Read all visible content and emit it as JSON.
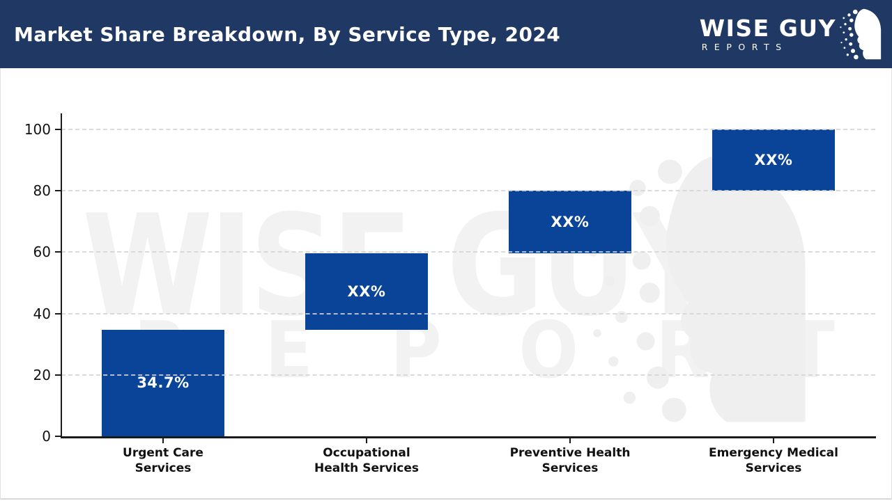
{
  "header": {
    "title": "Market Share Breakdown, By Service Type, 2024",
    "logo_line1": "WISE GUY",
    "logo_line2": "REPORTS"
  },
  "watermark": {
    "line1": "WISE GUY",
    "line2": "R E P O R T S"
  },
  "chart_data": {
    "type": "bar",
    "subtype": "waterfall",
    "title": "Market Share Breakdown, By Service Type, 2024",
    "categories": [
      "Urgent Care Services",
      "Occupational Health Services",
      "Preventive Health Services",
      "Emergency Medical Services"
    ],
    "bars": [
      {
        "category_line1": "Urgent Care",
        "category_line2": "Services",
        "start": 0,
        "end": 34.7,
        "label": "34.7%"
      },
      {
        "category_line1": "Occupational",
        "category_line2": "Health Services",
        "start": 34.7,
        "end": 59.7,
        "label": "XX%"
      },
      {
        "category_line1": "Preventive Health",
        "category_line2": "Services",
        "start": 59.7,
        "end": 80,
        "label": "XX%"
      },
      {
        "category_line1": "Emergency Medical",
        "category_line2": "Services",
        "start": 80,
        "end": 100,
        "label": "XX%"
      }
    ],
    "ylim": [
      0,
      100
    ],
    "yticks": [
      0,
      20,
      40,
      60,
      80,
      100
    ],
    "grid": "horizontal-dashed",
    "legend": "none",
    "bar_color": "#0a4498",
    "value_label_color": "#ffffff",
    "xlabel": "",
    "ylabel": ""
  }
}
